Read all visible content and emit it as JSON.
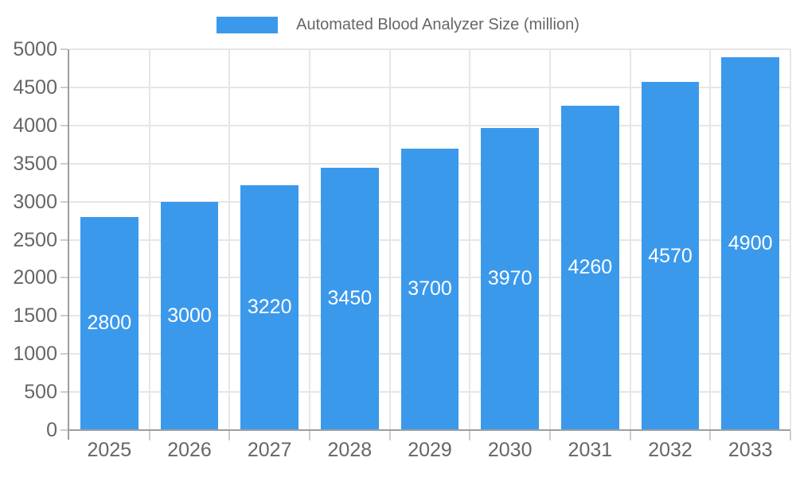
{
  "chart_data": {
    "type": "bar",
    "title": "",
    "legend": "Automated Blood Analyzer Size (million)",
    "categories": [
      "2025",
      "2026",
      "2027",
      "2028",
      "2029",
      "2030",
      "2031",
      "2032",
      "2033"
    ],
    "values": [
      2800,
      3000,
      3220,
      3450,
      3700,
      3970,
      4260,
      4570,
      4900
    ],
    "xlabel": "",
    "ylabel": "",
    "ylim": [
      0,
      5000
    ],
    "ytick_step": 500,
    "yticks": [
      0,
      500,
      1000,
      1500,
      2000,
      2500,
      3000,
      3500,
      4000,
      4500,
      5000
    ],
    "grid": true,
    "legend_position": "top-center",
    "bar_color": "#3B99EC",
    "bar_value_label_color": "#FFFFFF",
    "axis_text_color": "#666666",
    "gridline_color": "#E6E6E6",
    "axis_line_color": "#9E9E9E"
  }
}
